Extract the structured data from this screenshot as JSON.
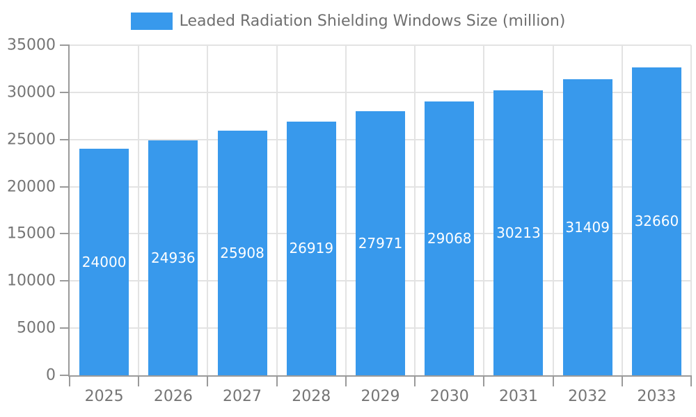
{
  "chart_data": {
    "type": "bar",
    "title": "Leaded Radiation Shielding Windows Size (million)",
    "categories": [
      "2025",
      "2026",
      "2027",
      "2028",
      "2029",
      "2030",
      "2031",
      "2032",
      "2033"
    ],
    "values": [
      24000,
      24936,
      25908,
      26919,
      27971,
      29068,
      30213,
      31409,
      32660
    ],
    "data_labels": [
      "24000",
      "24936",
      "25908",
      "26919",
      "27971",
      "29068",
      "30213",
      "31409",
      "32660"
    ],
    "xlabel": "",
    "ylabel": "",
    "ylim": [
      0,
      35000
    ],
    "yticks": [
      0,
      5000,
      10000,
      15000,
      20000,
      25000,
      30000,
      35000
    ],
    "ytick_labels": [
      "0",
      "5000",
      "10000",
      "15000",
      "20000",
      "25000",
      "30000",
      "35000"
    ],
    "grid": "on",
    "legend_position": "top-center",
    "colors": {
      "bar": "#3899EC",
      "axis_line": "#9A9A9A",
      "grid_line": "#E3E3E3",
      "tick_text": "#757575",
      "legend_text": "#6F6F6F",
      "value_text": "#FFFFFF",
      "background": "#FFFFFF"
    }
  }
}
